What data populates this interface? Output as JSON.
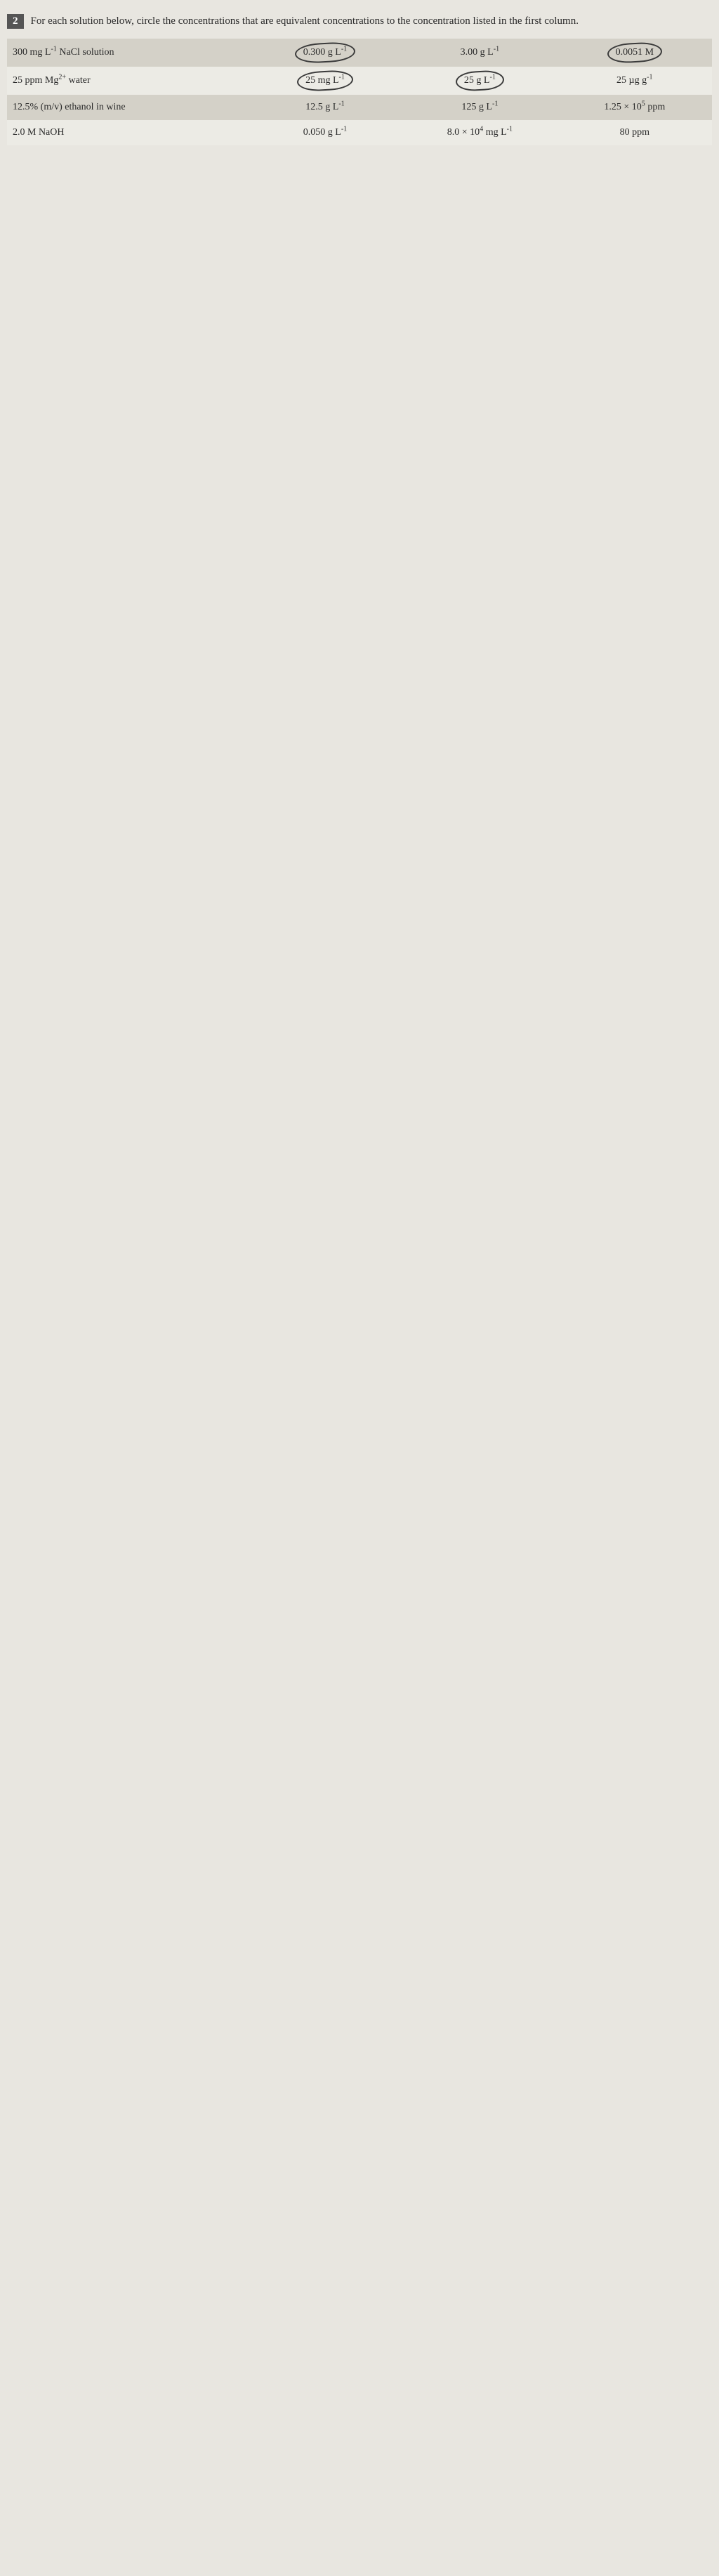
{
  "question": {
    "number": "2",
    "text": "For each solution below, circle the concentrations that are equivalent concentrations to the concentration listed in the first column."
  },
  "table": {
    "rows": [
      {
        "label_html": "300 mg L<sup>-1</sup> NaCl solution",
        "cells": [
          {
            "html": "0.300 g L<sup>-1</sup>",
            "circled": true
          },
          {
            "html": "3.00 g L<sup>-1</sup>",
            "circled": false
          },
          {
            "html": "0.0051 M",
            "circled": true
          }
        ]
      },
      {
        "label_html": "25 ppm Mg<sup>2+</sup> water",
        "cells": [
          {
            "html": "25 mg L<sup>-1</sup>",
            "circled": true
          },
          {
            "html": "25 g L<sup>-1</sup>",
            "circled": true
          },
          {
            "html": "25 µg g<sup>-1</sup>",
            "circled": false
          }
        ]
      },
      {
        "label_html": "12.5% (m/v) ethanol in wine",
        "cells": [
          {
            "html": "12.5 g L<sup>-1</sup>",
            "circled": false
          },
          {
            "html": "125 g L<sup>-1</sup>",
            "circled": false
          },
          {
            "html": "1.25 × 10<sup>5</sup> ppm",
            "circled": false
          }
        ]
      },
      {
        "label_html": "2.0 M NaOH",
        "cells": [
          {
            "html": "0.050 g L<sup>-1</sup>",
            "circled": false
          },
          {
            "html": "8.0 × 10<sup>4</sup> mg L<sup>-1</sup>",
            "circled": false
          },
          {
            "html": "80 ppm",
            "circled": false
          }
        ]
      }
    ]
  }
}
